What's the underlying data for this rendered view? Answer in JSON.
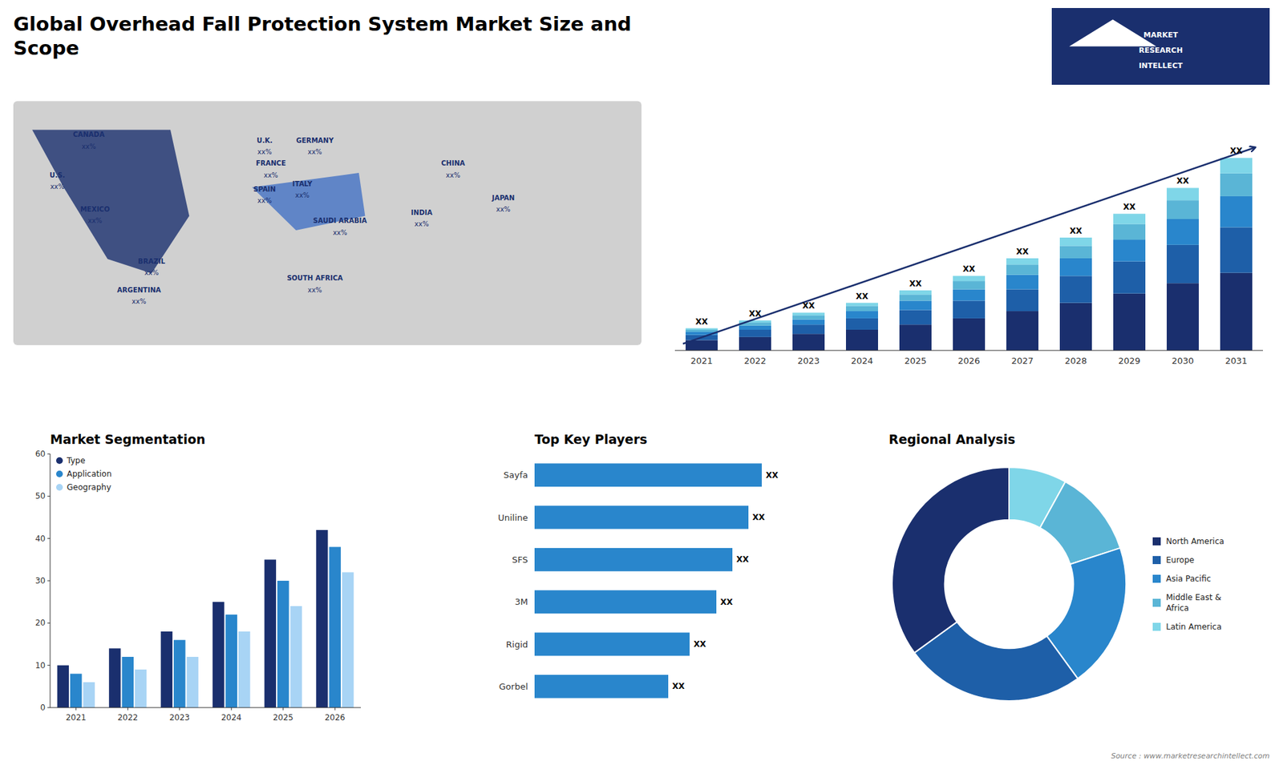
{
  "chart_data": [
    {
      "type": "map",
      "title": "Global Overhead Fall Protection System Market Size and\nScope",
      "categories": [
        "CANADA",
        "U.S.",
        "MEXICO",
        "BRAZIL",
        "ARGENTINA",
        "U.K.",
        "FRANCE",
        "SPAIN",
        "GERMANY",
        "ITALY",
        "SAUDI ARABIA",
        "SOUTH AFRICA",
        "CHINA",
        "JAPAN",
        "INDIA"
      ],
      "value_labels": [
        "xx%",
        "xx%",
        "xx%",
        "xx%",
        "xx%",
        "xx%",
        "xx%",
        "xx%",
        "xx%",
        "xx%",
        "xx%",
        "xx%",
        "xx%",
        "xx%",
        "xx%"
      ],
      "color": "#1a2f6e",
      "colors": [
        "#d0d0d0",
        "#1a2f6e",
        "#4472c4"
      ],
      "annotations": [
        "MARKET",
        "RESEARCH",
        "INTELLECT"
      ]
    },
    {
      "type": "bar",
      "stacked": true,
      "categories": [
        "2021",
        "2022",
        "2023",
        "2024",
        "2025",
        "2026",
        "2027",
        "2028",
        "2029",
        "2030",
        "2031"
      ],
      "series": [
        {
          "color": "#1a2f6e",
          "values": [
            1.0,
            1.3,
            1.6,
            2.0,
            2.5,
            3.1,
            3.8,
            4.6,
            5.5,
            6.5,
            7.5
          ]
        },
        {
          "color": "#1e5fa8",
          "values": [
            0.5,
            0.7,
            0.9,
            1.1,
            1.4,
            1.7,
            2.1,
            2.6,
            3.1,
            3.7,
            4.4
          ]
        },
        {
          "color": "#2986cc",
          "values": [
            0.3,
            0.4,
            0.5,
            0.7,
            0.9,
            1.1,
            1.4,
            1.7,
            2.1,
            2.5,
            3.0
          ]
        },
        {
          "color": "#5ab5d6",
          "values": [
            0.2,
            0.3,
            0.4,
            0.5,
            0.6,
            0.8,
            1.0,
            1.2,
            1.5,
            1.8,
            2.2
          ]
        },
        {
          "color": "#7fd6e8",
          "values": [
            0.15,
            0.2,
            0.25,
            0.3,
            0.4,
            0.5,
            0.6,
            0.8,
            1.0,
            1.2,
            1.5
          ]
        }
      ],
      "ylim": [
        0,
        24.18
      ],
      "tick_labels": "x",
      "grid": false,
      "annotations": [
        "XX",
        "XX",
        "XX",
        "XX",
        "XX",
        "XX",
        "XX",
        "XX",
        "XX",
        "XX",
        "XX"
      ]
    },
    {
      "type": "bar",
      "title": "Market Segmentation",
      "categories": [
        "2021",
        "2022",
        "2023",
        "2024",
        "2025",
        "2026"
      ],
      "series": [
        {
          "name": "Type",
          "color": "#1a2f6e",
          "values": [
            10,
            14,
            18,
            25,
            35,
            42
          ]
        },
        {
          "name": "Application",
          "color": "#2986cc",
          "values": [
            8,
            12,
            16,
            22,
            30,
            38
          ]
        },
        {
          "name": "Geography",
          "color": "#a8d4f5",
          "values": [
            6,
            9,
            12,
            18,
            24,
            32
          ]
        }
      ],
      "ylim": [
        0,
        60
      ],
      "yticks": [
        0,
        10,
        20,
        30,
        40,
        50,
        60
      ],
      "grid": false,
      "legend": "upper left"
    },
    {
      "type": "bar",
      "orientation": "horizontal",
      "title": "Top Key Players",
      "categories": [
        "Sayfa",
        "Uniline",
        "SFS",
        "3M",
        "Rigid",
        "Gorbel"
      ],
      "values": [
        85,
        80,
        74,
        68,
        58,
        50
      ],
      "color": "#2986cc",
      "xlim": [
        0,
        110
      ],
      "tick_labels": "y",
      "grid": false,
      "annotations": [
        "XX",
        "XX",
        "XX",
        "XX",
        "XX",
        "XX"
      ]
    },
    {
      "type": "pie",
      "title": "Regional Analysis",
      "categories": [
        "Latin America",
        "Middle East &\nAfrica",
        "Asia Pacific",
        "Europe",
        "North America"
      ],
      "values": [
        8,
        12,
        20,
        25,
        35
      ],
      "colors": [
        "#7fd6e8",
        "#5ab5d6",
        "#2986cc",
        "#1e5fa8",
        "#1a2f6e"
      ],
      "legend": "right",
      "annotations": [
        "Source : www.marketresearchintellect.com"
      ]
    }
  ]
}
